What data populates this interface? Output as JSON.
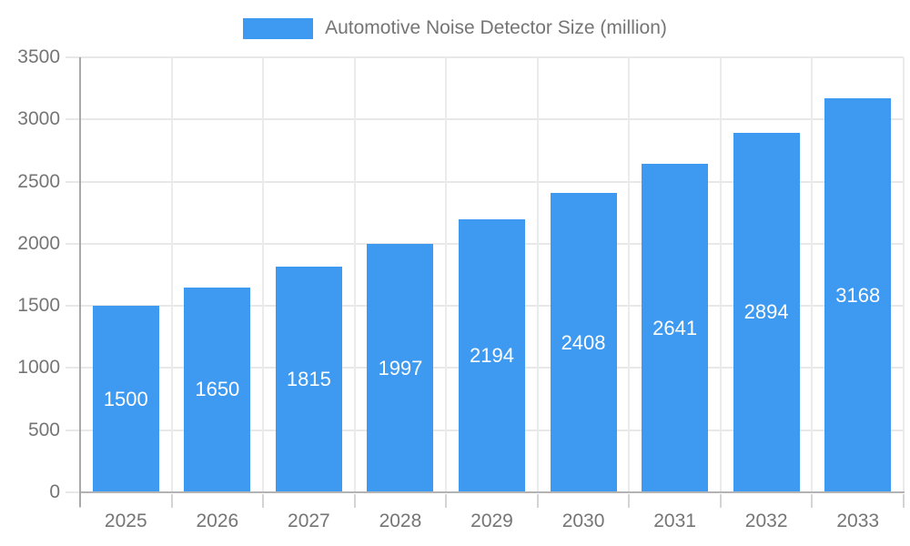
{
  "legend": {
    "label": "Automotive Noise Detector Size (million)"
  },
  "chart_data": {
    "type": "bar",
    "title": "Automotive Noise Detector Size (million)",
    "categories": [
      "2025",
      "2026",
      "2027",
      "2028",
      "2029",
      "2030",
      "2031",
      "2032",
      "2033"
    ],
    "values": [
      1500,
      1650,
      1815,
      1997,
      2194,
      2408,
      2641,
      2894,
      3168
    ],
    "series_name": "Automotive Noise Detector Size (million)",
    "xlabel": "",
    "ylabel": "",
    "ylim": [
      0,
      3500
    ],
    "yticks": [
      0,
      500,
      1000,
      1500,
      2000,
      2500,
      3000,
      3500
    ],
    "grid": true,
    "legend_position": "top",
    "bar_value_labels": true
  },
  "colors": {
    "bar": "#3E9AF0",
    "bar_label_text": "#FFFFFF",
    "axis_text": "#757575",
    "gridline": "#E8E8E8",
    "vertical_gridline": "#EBEBEB",
    "axis_line": "#B3B3B3",
    "y_axis_line": "#A8A8A8",
    "x_tick": "#D4D4D4",
    "background": "#FFFFFF"
  }
}
